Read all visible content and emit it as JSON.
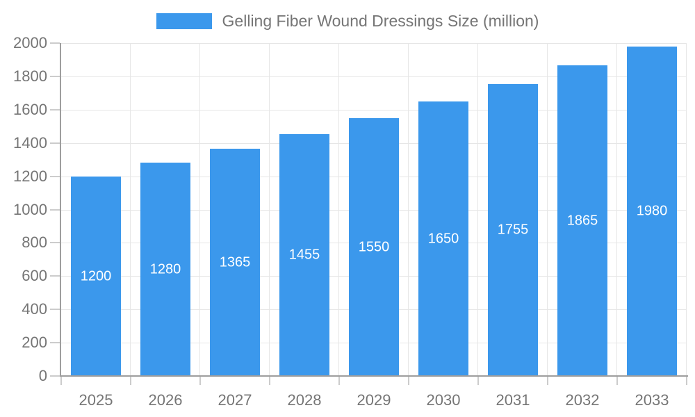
{
  "legend": {
    "label": "Gelling Fiber Wound Dressings Size (million)"
  },
  "chart_data": {
    "type": "bar",
    "title": "Gelling Fiber Wound Dressings Size (million)",
    "categories": [
      "2025",
      "2026",
      "2027",
      "2028",
      "2029",
      "2030",
      "2031",
      "2032",
      "2033"
    ],
    "values": [
      1200,
      1280,
      1365,
      1455,
      1550,
      1650,
      1755,
      1865,
      1980
    ],
    "bar_labels": [
      "1200",
      "1280",
      "1365",
      "1455",
      "1550",
      "1650",
      "1755",
      "1865",
      "1980"
    ],
    "xlabel": "",
    "ylabel": "",
    "ylim": [
      0,
      2000
    ],
    "ytick_step": 200,
    "ytick_labels": [
      "0",
      "200",
      "400",
      "600",
      "800",
      "1000",
      "1200",
      "1400",
      "1600",
      "1800",
      "2000"
    ],
    "grid": "both",
    "legend_position": "top-center",
    "colors": {
      "bar": "#3b98ec",
      "grid_line": "#e6e6e6",
      "axis_line": "#9e9e9e",
      "tick_line": "#cccccc",
      "tick_label": "#757575",
      "legend_text": "#757575",
      "bar_label": "#ffffff",
      "background": "#ffffff"
    }
  }
}
